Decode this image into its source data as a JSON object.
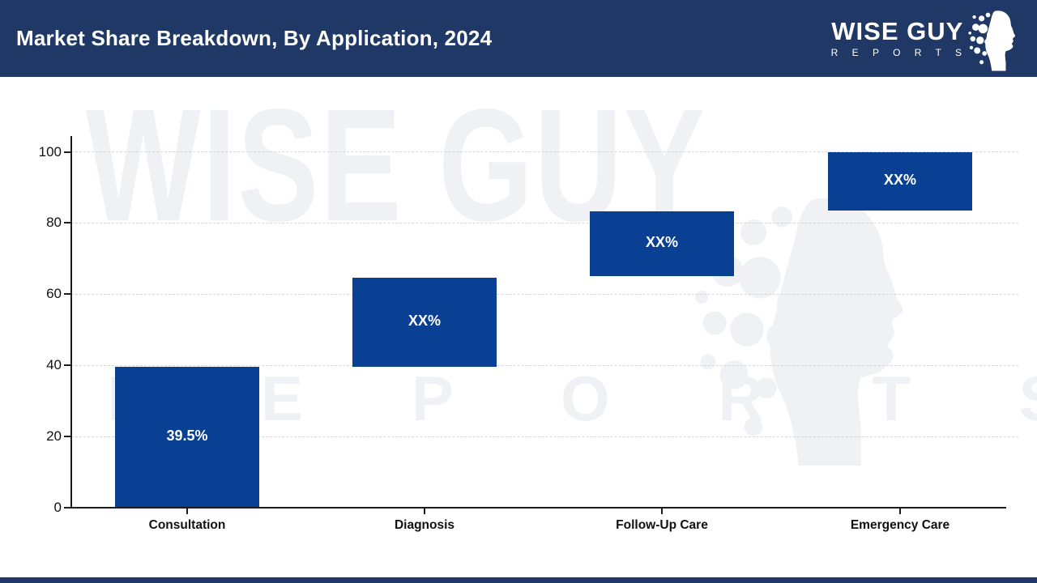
{
  "header": {
    "title": "Market Share Breakdown, By Application, 2024",
    "bg_color": "#1f3865",
    "logo": {
      "line1": "WISE GUY",
      "line2": "R E P O R T S"
    }
  },
  "watermark": {
    "line1": "WISE GUY",
    "line2": "R E P O R T S"
  },
  "chart_data": {
    "type": "bar",
    "subtype": "waterfall",
    "title": "Market Share Breakdown, By Application, 2024",
    "xlabel": "",
    "ylabel": "",
    "ylim": [
      0,
      100
    ],
    "yticks": [
      0,
      20,
      40,
      60,
      80,
      100
    ],
    "grid": "horizontal-dashed",
    "categories": [
      "Consultation",
      "Diagnosis",
      "Follow-Up Care",
      "Emergency Care"
    ],
    "segments": [
      {
        "category": "Consultation",
        "start": 0,
        "end": 39.5,
        "label": "39.5%"
      },
      {
        "category": "Diagnosis",
        "start": 39.5,
        "end": 64.6,
        "label": "XX%"
      },
      {
        "category": "Follow-Up Care",
        "start": 65,
        "end": 83.3,
        "label": "XX%"
      },
      {
        "category": "Emergency Care",
        "start": 83.5,
        "end": 100,
        "label": "XX%"
      }
    ],
    "bar_color": "#0a4094",
    "bar_label_color": "#ffffff",
    "axis_color": "#1c1c1c",
    "grid_color": "#d6d6d6"
  },
  "footer": {
    "bg_color": "#1f3865"
  }
}
